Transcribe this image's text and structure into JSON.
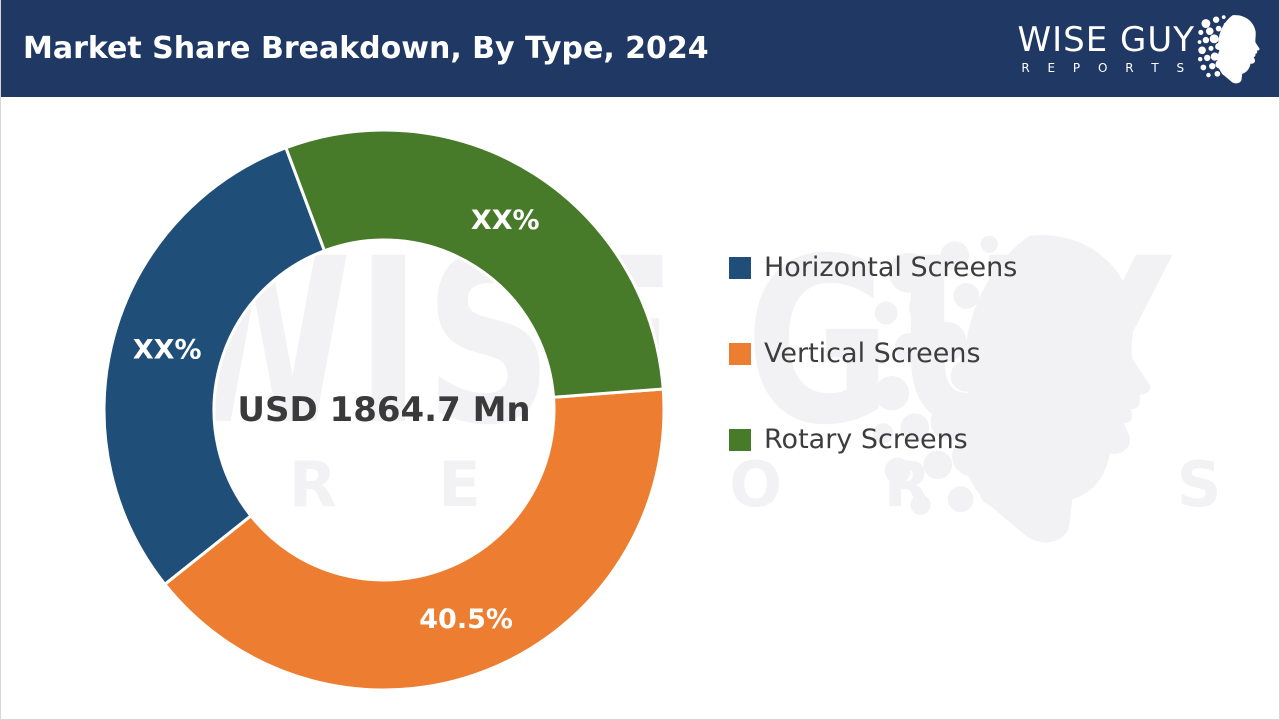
{
  "header": {
    "title": "Market Share Breakdown, By Type, 2024",
    "bg_color": "#1f3864",
    "logo": {
      "line1": "WISE GUY",
      "line2": "R E P O R T S"
    }
  },
  "watermark": {
    "line1": "WISE GUY",
    "line2": "R E P O R T S"
  },
  "chart_data": {
    "type": "pie",
    "subtype": "donut",
    "title": "Market Share Breakdown, By Type, 2024",
    "center_label": "USD 1864.7 Mn",
    "legend_position": "right",
    "start_angle_deg_clockwise_from_top": -20.5,
    "draw_order": [
      2,
      1,
      0
    ],
    "segments": [
      {
        "label": "Horizontal Screens",
        "display_label": "XX%",
        "value_pct": 30,
        "value_shown": false,
        "color": "#1f4e79"
      },
      {
        "label": "Vertical Screens",
        "display_label": "40.5%",
        "value_pct": 40.5,
        "value_shown": true,
        "color": "#ed7d31"
      },
      {
        "label": "Rotary Screens",
        "display_label": "XX%",
        "value_pct": 29.5,
        "value_shown": false,
        "color": "#477a29"
      }
    ]
  }
}
